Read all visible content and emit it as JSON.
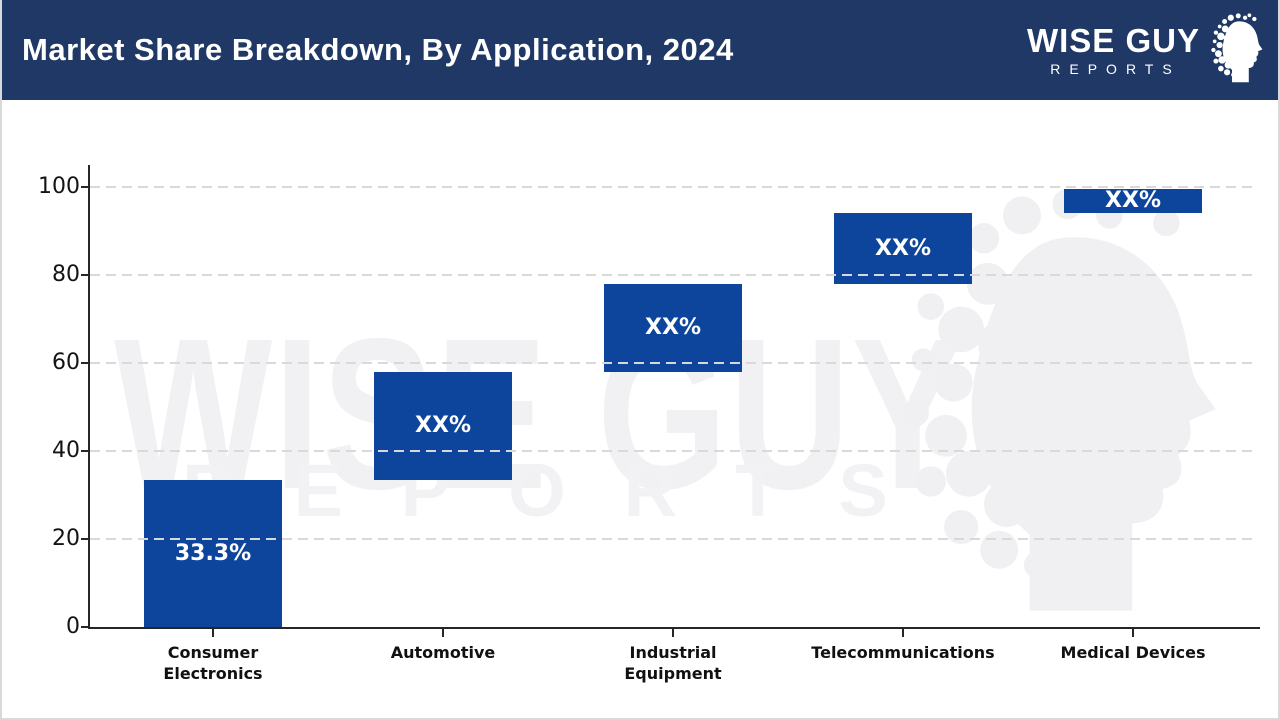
{
  "header": {
    "title": "Market Share Breakdown, By Application, 2024",
    "bg_color": "#1F3865",
    "logo": {
      "line1": "WISE GUY",
      "line2": "REPORTS",
      "face_icon": "dotted-face-profile"
    }
  },
  "watermark": {
    "line1": "WISE GUY",
    "line2": "REPORTS"
  },
  "chart_data": {
    "type": "bar",
    "subtype": "waterfall-floating-segments",
    "title": "Market Share Breakdown, By Application, 2024",
    "categories": [
      "Consumer Electronics",
      "Automotive",
      "Industrial Equipment",
      "Telecommunications",
      "Medical Devices"
    ],
    "category_label_lines": [
      [
        "Consumer",
        "Electronics"
      ],
      [
        "Automotive"
      ],
      [
        "Industrial",
        "Equipment"
      ],
      [
        "Telecommunications"
      ],
      [
        "Medical Devices"
      ]
    ],
    "segments": [
      {
        "category": "Consumer Electronics",
        "start": 0,
        "end": 33.3,
        "label": "33.3%"
      },
      {
        "category": "Automotive",
        "start": 33.3,
        "end": 58,
        "label": "XX%"
      },
      {
        "category": "Industrial Equipment",
        "start": 58,
        "end": 78,
        "label": "XX%"
      },
      {
        "category": "Telecommunications",
        "start": 78,
        "end": 94,
        "label": "XX%"
      },
      {
        "category": "Medical Devices",
        "start": 94,
        "end": 99.5,
        "label": "XX%"
      }
    ],
    "yticks": [
      0,
      20,
      40,
      60,
      80,
      100
    ],
    "ylim": [
      0,
      105
    ],
    "xlabel": "",
    "ylabel": "",
    "bar_color": "#0D459C",
    "value_label_color": "#FFFFFF",
    "axis_color": "#262626",
    "grid": {
      "axis": "y",
      "style": "dashed",
      "color": "#D9D9D9",
      "drawn_over_bars": true
    },
    "legend": null
  }
}
